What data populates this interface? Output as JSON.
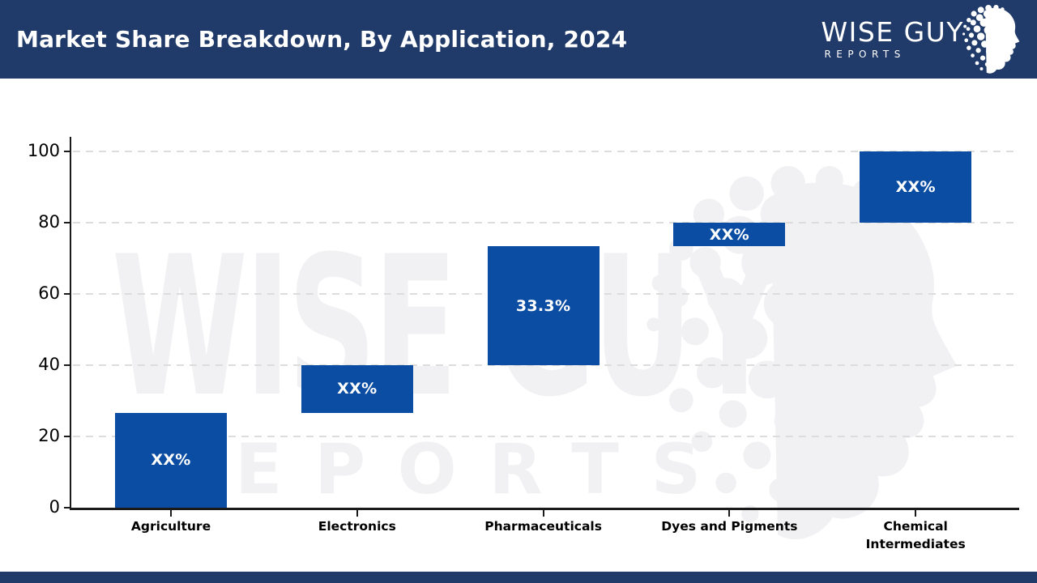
{
  "header": {
    "title": "Market Share Breakdown, By Application, 2024",
    "logo": {
      "primary": "WISE GUY",
      "secondary": "REPORTS"
    }
  },
  "watermark": {
    "primary": "WISE GUY",
    "secondary": "REPORTS"
  },
  "colors": {
    "header_bg": "#203a69",
    "bar": "#0b4da2",
    "grid": "#dcdcdc",
    "axis": "#1a1a1a",
    "bar_label_text": "#ffffff",
    "watermark": "#f1f1f3"
  },
  "chart_data": {
    "type": "bar",
    "subtype": "waterfall",
    "title": "Market Share Breakdown, By Application, 2024",
    "xlabel": "",
    "ylabel": "",
    "categories": [
      "Agriculture",
      "Electronics",
      "Pharmaceuticals",
      "Dyes and Pigments",
      "Chemical Intermediates"
    ],
    "values": [
      26.7,
      13.3,
      33.3,
      6.7,
      20.0
    ],
    "cumulative_start": [
      0,
      26.7,
      40,
      73.3,
      80
    ],
    "cumulative_end": [
      26.7,
      40,
      73.3,
      80,
      100
    ],
    "value_labels": [
      "XX%",
      "XX%",
      "33.3%",
      "XX%",
      "XX%"
    ],
    "yticks": [
      0,
      20,
      40,
      60,
      80,
      100
    ],
    "ylim": [
      0,
      100
    ],
    "grid": "horizontal-dashed",
    "legend": "none",
    "bar_color": "#0b4da2"
  }
}
